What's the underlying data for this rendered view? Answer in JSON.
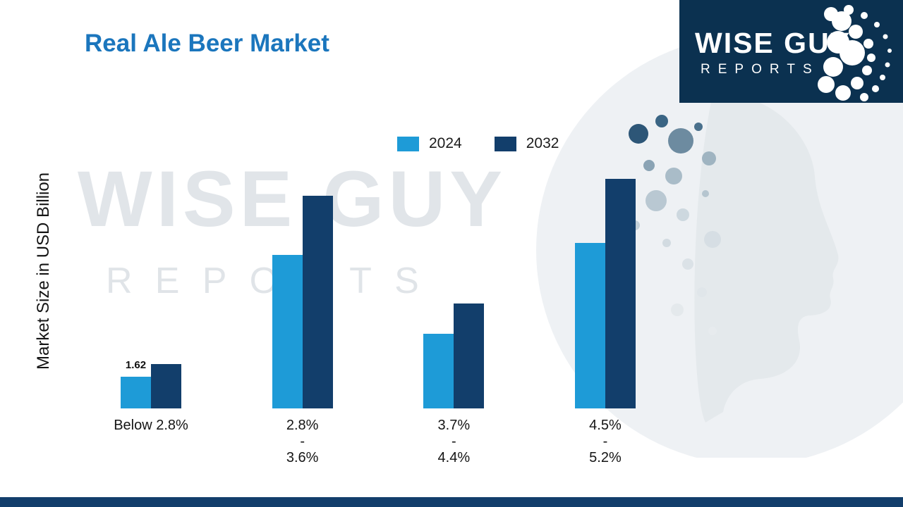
{
  "page": {
    "title": "Real Ale Beer Market",
    "ylabel": "Market Size in USD Billion"
  },
  "logo": {
    "line1": "WISE GUY",
    "line2": "REPORTS"
  },
  "watermark": {
    "line1": "WISE GUY",
    "line2": "REPORTS"
  },
  "legend": [
    {
      "label": "2024",
      "color": "#1e9bd7"
    },
    {
      "label": "2032",
      "color": "#123e6b"
    }
  ],
  "colors": {
    "title_blue": "#1b76bd",
    "bar_2024": "#1e9bd7",
    "bar_2032": "#123e6b",
    "logo_background": "#0b3150",
    "bottom_strip": "#123e6b"
  },
  "chart_data": {
    "type": "bar",
    "title": "Real Ale Beer Market",
    "ylabel": "Market Size in USD Billion",
    "legend_position": "top",
    "grid": false,
    "categories": [
      [
        "Below 2.8%"
      ],
      [
        "2.8%",
        "-",
        "3.6%"
      ],
      [
        "3.7%",
        "-",
        "4.4%"
      ],
      [
        "4.5%",
        "-",
        "5.2%"
      ]
    ],
    "series": [
      {
        "name": "2024",
        "color": "#1e9bd7",
        "values": [
          1.62,
          7.85,
          3.8,
          8.45
        ]
      },
      {
        "name": "2032",
        "color": "#123e6b",
        "values": [
          2.27,
          10.85,
          5.35,
          11.73
        ]
      }
    ],
    "data_labels": [
      {
        "series": "2024",
        "category_index": 0,
        "text": "1.62"
      }
    ],
    "ylim": [
      0,
      12
    ]
  }
}
